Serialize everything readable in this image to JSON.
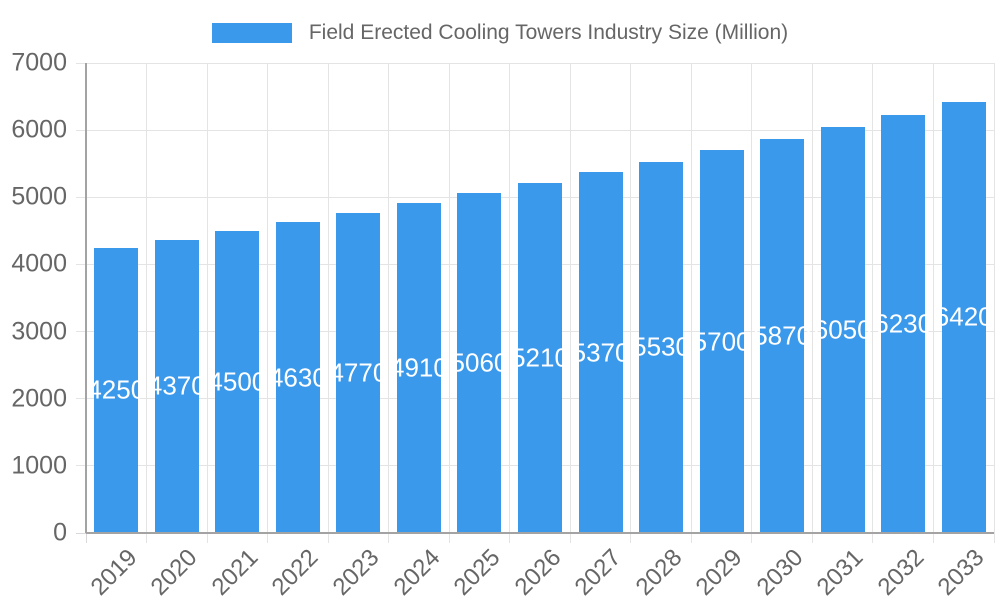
{
  "chart_data": {
    "type": "bar",
    "title": "Field Erected Cooling Towers Industry Size (Million)",
    "categories": [
      "2019",
      "2020",
      "2021",
      "2022",
      "2023",
      "2024",
      "2025",
      "2026",
      "2027",
      "2028",
      "2029",
      "2030",
      "2031",
      "2032",
      "2033"
    ],
    "values": [
      4250,
      4370,
      4500,
      4630,
      4770,
      4910,
      5060,
      5210,
      5370,
      5530,
      5700,
      5870,
      6050,
      6230,
      6420
    ],
    "xlabel": "",
    "ylabel": "",
    "ylim": [
      0,
      7000
    ],
    "yticks": [
      0,
      1000,
      2000,
      3000,
      4000,
      5000,
      6000,
      7000
    ],
    "grid": true,
    "legend_position": "top",
    "legend_entries": [
      "Field Erected Cooling Towers Industry Size (Million)"
    ],
    "bar_color": "#3B99EC",
    "bar_label_color": "#FFFFFF",
    "axis_text_color": "#666666",
    "grid_color": "#E4E4E4",
    "tick_color": "#D9D9D9",
    "axis_line_color": "#A3A3A3",
    "background_color": "#FFFFFF"
  }
}
